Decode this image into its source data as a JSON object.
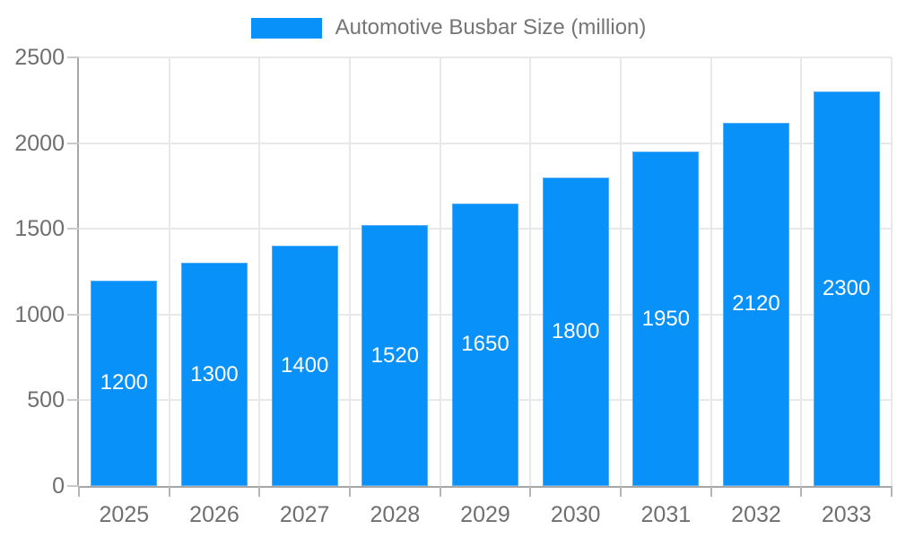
{
  "chart_data": {
    "type": "bar",
    "title": "",
    "legend": "Automotive Busbar Size (million)",
    "legend_position": "top-center",
    "categories": [
      "2025",
      "2026",
      "2027",
      "2028",
      "2029",
      "2030",
      "2031",
      "2032",
      "2033"
    ],
    "values": [
      1200,
      1300,
      1400,
      1520,
      1650,
      1800,
      1950,
      2120,
      2300
    ],
    "bar_labels": [
      "1200",
      "1300",
      "1400",
      "1520",
      "1650",
      "1800",
      "1950",
      "2120",
      "2300"
    ],
    "xlabel": "",
    "ylabel": "",
    "ylim": [
      0,
      2500
    ],
    "ytick_step": 500,
    "yticks": [
      0,
      500,
      1000,
      1500,
      2000,
      2500
    ],
    "ytick_labels": [
      "0",
      "500",
      "1000",
      "1500",
      "2000",
      "2500"
    ],
    "grid": true
  },
  "colors": {
    "bar": "#0991fa",
    "bar_border": "#53aef8",
    "bar_label_text": "#ffffff",
    "axis_text": "#6f6f6f",
    "legend_text": "#757575",
    "axis_line": "#a6a6a6",
    "gridline": "#e8e8e8",
    "background": "#ffffff"
  }
}
